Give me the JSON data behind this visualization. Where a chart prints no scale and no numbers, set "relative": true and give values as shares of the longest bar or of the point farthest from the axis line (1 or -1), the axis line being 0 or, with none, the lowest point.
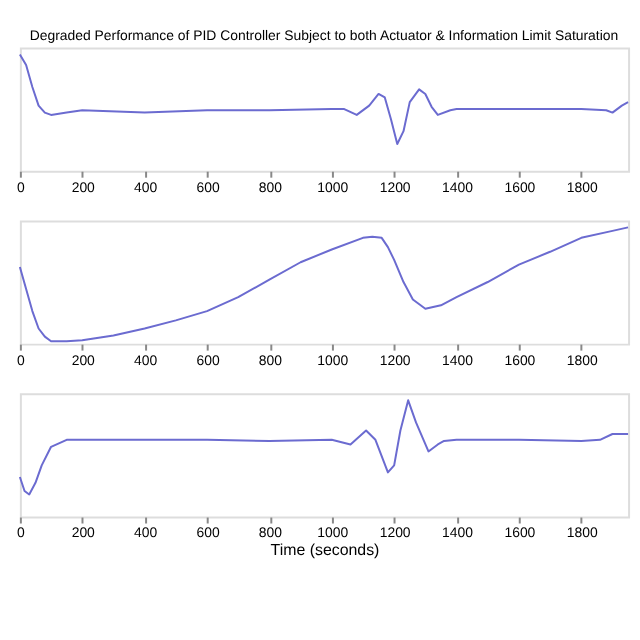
{
  "chart_data": [
    {
      "type": "line",
      "title": "Degraded Performance of PID Controller Subject to both Actuator & Information Limit Saturation",
      "relative": true,
      "xlim": [
        0,
        1950
      ],
      "xticks": [
        0,
        200,
        400,
        600,
        800,
        1000,
        1200,
        1400,
        1600,
        1800
      ],
      "tick_labels": "x",
      "grid": false,
      "series": [
        {
          "color": "#6b6bd0",
          "x": [
            0,
            20,
            40,
            60,
            80,
            100,
            150,
            200,
            400,
            600,
            800,
            1000,
            1040,
            1080,
            1120,
            1150,
            1170,
            1190,
            1210,
            1230,
            1250,
            1280,
            1300,
            1320,
            1340,
            1380,
            1400,
            1600,
            1800,
            1880,
            1900,
            1930,
            1950
          ],
          "values": [
            1.0,
            0.91,
            0.72,
            0.56,
            0.5,
            0.48,
            0.5,
            0.52,
            0.5,
            0.52,
            0.52,
            0.53,
            0.53,
            0.48,
            0.56,
            0.66,
            0.63,
            0.44,
            0.23,
            0.34,
            0.59,
            0.7,
            0.66,
            0.55,
            0.48,
            0.52,
            0.53,
            0.53,
            0.53,
            0.52,
            0.5,
            0.56,
            0.59
          ]
        }
      ]
    },
    {
      "type": "line",
      "relative": true,
      "xlim": [
        0,
        1950
      ],
      "xticks": [
        0,
        200,
        400,
        600,
        800,
        1000,
        1200,
        1400,
        1600,
        1800
      ],
      "tick_labels": "x",
      "grid": false,
      "series": [
        {
          "color": "#6b6bd0",
          "x": [
            0,
            20,
            40,
            60,
            80,
            100,
            150,
            200,
            300,
            400,
            500,
            600,
            700,
            800,
            900,
            1000,
            1100,
            1130,
            1160,
            1180,
            1200,
            1230,
            1260,
            1300,
            1350,
            1400,
            1500,
            1600,
            1700,
            1800,
            1900,
            1950
          ],
          "values": [
            0.66,
            0.47,
            0.28,
            0.13,
            0.06,
            0.02,
            0.02,
            0.03,
            0.07,
            0.13,
            0.2,
            0.28,
            0.4,
            0.55,
            0.7,
            0.81,
            0.91,
            0.92,
            0.91,
            0.83,
            0.72,
            0.53,
            0.38,
            0.3,
            0.33,
            0.4,
            0.53,
            0.68,
            0.79,
            0.91,
            0.97,
            1.0
          ]
        }
      ]
    },
    {
      "type": "line",
      "xlabel": "Time (seconds)",
      "relative": true,
      "xlim": [
        0,
        1950
      ],
      "xticks": [
        0,
        200,
        400,
        600,
        800,
        1000,
        1200,
        1400,
        1600,
        1800
      ],
      "tick_labels": "x",
      "grid": false,
      "series": [
        {
          "color": "#6b6bd0",
          "x": [
            0,
            15,
            30,
            50,
            70,
            100,
            150,
            200,
            400,
            600,
            800,
            1000,
            1060,
            1110,
            1140,
            1180,
            1200,
            1220,
            1245,
            1270,
            1310,
            1340,
            1360,
            1400,
            1600,
            1800,
            1860,
            1900,
            1950
          ],
          "values": [
            0.34,
            0.22,
            0.19,
            0.29,
            0.44,
            0.6,
            0.66,
            0.66,
            0.66,
            0.66,
            0.65,
            0.66,
            0.62,
            0.74,
            0.66,
            0.38,
            0.44,
            0.74,
            1.0,
            0.81,
            0.56,
            0.62,
            0.65,
            0.66,
            0.66,
            0.65,
            0.66,
            0.71,
            0.71
          ]
        }
      ]
    }
  ]
}
